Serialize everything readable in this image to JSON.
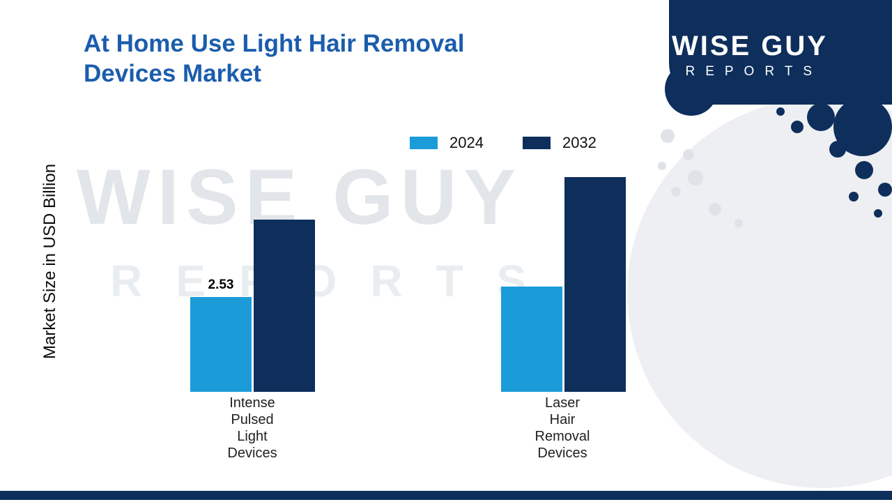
{
  "page": {
    "title": "At Home Use Light Hair Removal Devices Market",
    "ylabel": "Market Size in USD Billion"
  },
  "logo": {
    "name": "WISE GUY",
    "sub": "REPORTS"
  },
  "watermark": {
    "line1": "WISE GUY",
    "line2": "REPORTS"
  },
  "colors": {
    "title_blue": "#1b5dad",
    "series_2024_blue": "#1b9cd9",
    "series_2032_navy": "#0e2e5c",
    "footer_navy": "#0e2e5c",
    "watermark_gray": "#e2e5e9"
  },
  "chart_data": {
    "type": "bar",
    "title": "At Home Use Light Hair Removal Devices Market",
    "xlabel": "",
    "ylabel": "Market Size in USD Billion",
    "categories": [
      "Intense Pulsed Light Devices",
      "Laser Hair Removal Devices"
    ],
    "series": [
      {
        "name": "2024",
        "color": "#1b9cd9",
        "values": [
          2.53,
          2.81
        ]
      },
      {
        "name": "2032",
        "color": "#0e2e5c",
        "values": [
          4.6,
          5.73
        ]
      }
    ],
    "value_labels_shown": [
      {
        "series": "2024",
        "category": "Intense Pulsed Light Devices",
        "text": "2.53"
      }
    ],
    "ylim": [
      0,
      6
    ],
    "grid": false,
    "legend_position": "top-center",
    "axis_ticks_visible": false
  }
}
